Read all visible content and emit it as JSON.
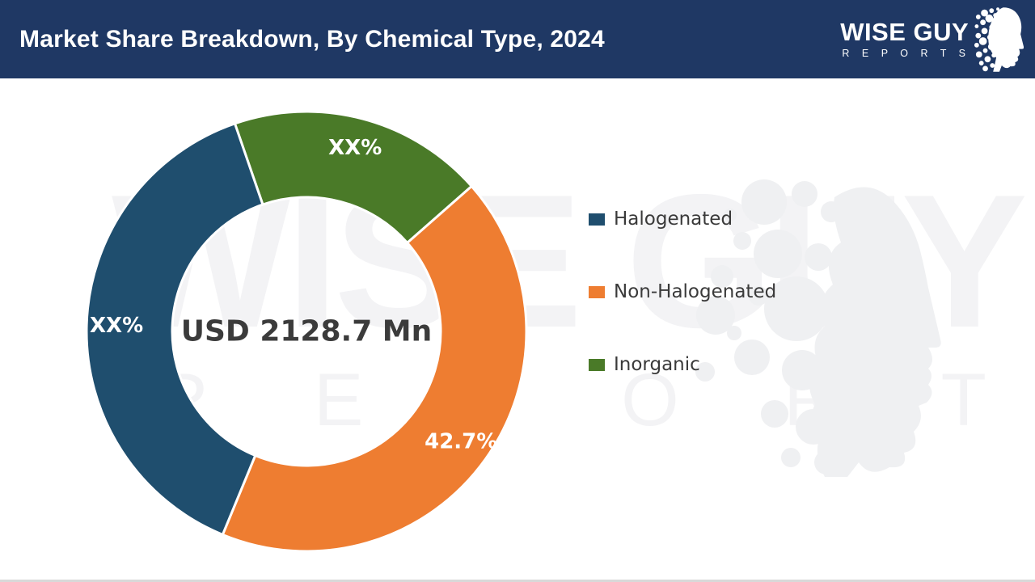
{
  "header": {
    "title": "Market Share Breakdown, By Chemical Type, 2024",
    "logo": {
      "wordmark": "WISE GUY",
      "subtext": "R E P O R T S"
    }
  },
  "watermark": {
    "line1": "WISE GUY",
    "line2": "R E P O R T S"
  },
  "chart_data": {
    "type": "pie",
    "subtype": "donut",
    "title": "Market Share Breakdown, By Chemical Type, 2024",
    "center_label": "USD 2128.7 Mn",
    "start_angle_deg": -19,
    "direction": "clockwise",
    "legend_position": "right",
    "grid": false,
    "segments": [
      {
        "name": "Halogenated",
        "color": "#1F4E6E",
        "display_label": "XX%",
        "percent": 38.5
      },
      {
        "name": "Non-Halogenated",
        "color": "#EE7D31",
        "display_label": "42.7%",
        "percent": 42.7
      },
      {
        "name": "Inorganic",
        "color": "#4A7A28",
        "display_label": "XX%",
        "percent": 18.8
      }
    ],
    "draw_order": [
      "Inorganic",
      "Non-Halogenated",
      "Halogenated"
    ]
  },
  "colors": {
    "header_bg": "#1F3864",
    "slice_label_text": "#FFFFFF",
    "center_text": "#3B3B3B",
    "legend_text": "#3A3A3A",
    "watermark": "#F3F3F5"
  }
}
